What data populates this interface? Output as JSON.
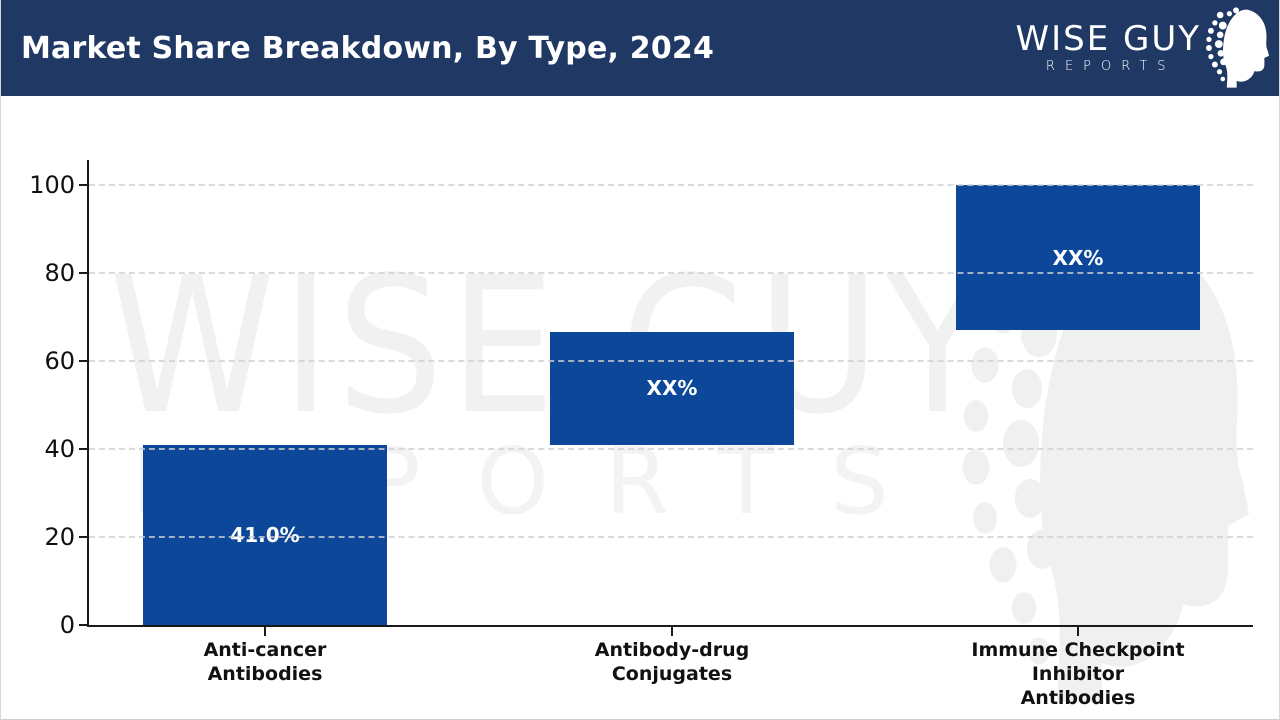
{
  "header": {
    "title": "Market Share Breakdown, By Type, 2024",
    "logo": {
      "line1": "WISE GUY",
      "line2": "REPORTS"
    }
  },
  "watermark": {
    "line1": "WISE GUY",
    "line2": "REPORTS"
  },
  "chart_data": {
    "type": "bar",
    "subtype": "waterfall-floating-segments",
    "title": "Market Share Breakdown, By Type, 2024",
    "categories": [
      "Anti-cancer\nAntibodies",
      "Antibody-drug\nConjugates",
      "Immune Checkpoint\nInhibitor\nAntibodies"
    ],
    "bars": [
      {
        "label": "41.0%",
        "start": 0,
        "end": 41
      },
      {
        "label": "XX%",
        "start": 41,
        "end": 66.5
      },
      {
        "label": "XX%",
        "start": 67,
        "end": 100
      }
    ],
    "y_ticks": [
      0,
      20,
      40,
      60,
      80,
      100
    ],
    "ylim": [
      0,
      105
    ],
    "xlabel": "",
    "ylabel": "",
    "grid": "horizontal-dashed",
    "legend": "none",
    "bar_color": "#0c4799",
    "header_color": "#1f3864",
    "label_color": "#ffffff"
  }
}
